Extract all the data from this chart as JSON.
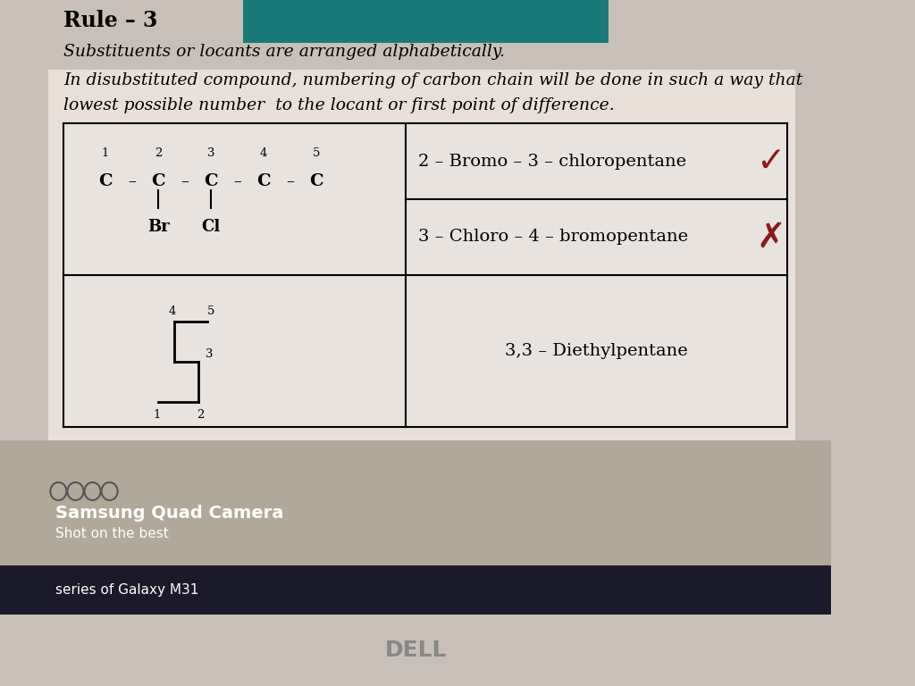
{
  "background_color": "#c8c0b8",
  "slide_bg": "#e8e0d8",
  "title": "Rule – 3",
  "title_fontsize": 17,
  "rule_text_line1": "Substituents or locants are arranged alphabetically.",
  "rule_text_line2": "In disubstituted compound, numbering of carbon chain will be done in such a way that",
  "rule_text_line3": "lowest possible number  to the locant or first point of difference.",
  "text_fontsize": 13.5,
  "table_bg": "#e0dbd5",
  "table_border": "#000000",
  "check_color": "#8B1A1A",
  "cross_color": "#8B1A1A",
  "correct_name": "2 – Bromo – 3 – chloropentane",
  "wrong_name": "3 – Chloro – 4 – bromopentane",
  "third_name": "3,3 – Diethylpentane",
  "name_fontsize": 14,
  "teal_bar_color": "#1a7a7a",
  "vedantu_color": "#5a3010"
}
